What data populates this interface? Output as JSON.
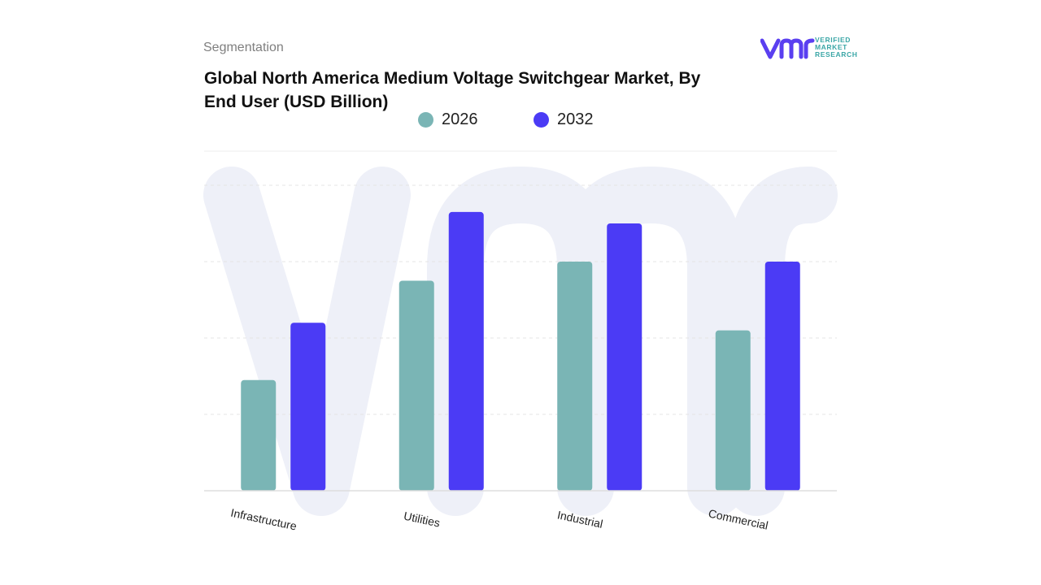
{
  "header": {
    "subheading": "Segmentation",
    "title": "Global North America Medium Voltage Switchgear Market, By End User (USD Billion)"
  },
  "logo": {
    "mark": "vmr",
    "lines": [
      "VERIFIED",
      "MARKET",
      "RESEARCH"
    ],
    "colors": {
      "mark": "#5a3ff0",
      "text": "#3aa6a6"
    }
  },
  "legend": [
    {
      "label": "2026",
      "color": "#7ab5b5"
    },
    {
      "label": "2032",
      "color": "#4b3bf5"
    }
  ],
  "chart_data": {
    "type": "bar",
    "categories": [
      "Infrastructure",
      "Utilities",
      "Industrial",
      "Commercial"
    ],
    "series": [
      {
        "name": "2026",
        "values": [
          1.45,
          2.75,
          3.0,
          2.1
        ],
        "color": "#7ab5b5"
      },
      {
        "name": "2032",
        "values": [
          2.2,
          3.65,
          3.5,
          3.0
        ],
        "color": "#4b3bf5"
      }
    ],
    "ylim": [
      0,
      4
    ],
    "grid": true,
    "legend_position": "top-center",
    "xlabel": "",
    "ylabel": "",
    "tick_label_rotation_deg": 12
  }
}
